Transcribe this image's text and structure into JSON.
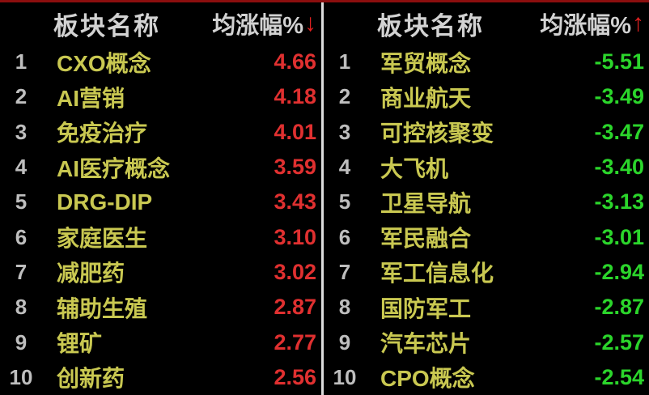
{
  "colors": {
    "background": "#000000",
    "top_border": "#8b0e0e",
    "divider": "#dcdcdc",
    "header_text": "#d2d2d2",
    "rank_text": "#bebebe",
    "sector_text": "#c9c851",
    "up_value": "#e03030",
    "down_value": "#2bd52b",
    "arrow": "#e02020"
  },
  "panels": [
    {
      "id": "gainers",
      "trend": "up",
      "header": {
        "name_label": "板块名称",
        "value_label": "均涨幅%",
        "sort_arrow": "↓"
      },
      "rows": [
        {
          "rank": "1",
          "name": "CXO概念",
          "value": "4.66"
        },
        {
          "rank": "2",
          "name": "AI营销",
          "value": "4.18"
        },
        {
          "rank": "3",
          "name": "免疫治疗",
          "value": "4.01"
        },
        {
          "rank": "4",
          "name": "AI医疗概念",
          "value": "3.59"
        },
        {
          "rank": "5",
          "name": "DRG-DIP",
          "value": "3.43"
        },
        {
          "rank": "6",
          "name": "家庭医生",
          "value": "3.10"
        },
        {
          "rank": "7",
          "name": "减肥药",
          "value": "3.02"
        },
        {
          "rank": "8",
          "name": "辅助生殖",
          "value": "2.87"
        },
        {
          "rank": "9",
          "name": "锂矿",
          "value": "2.77"
        },
        {
          "rank": "10",
          "name": "创新药",
          "value": "2.56"
        }
      ]
    },
    {
      "id": "losers",
      "trend": "down",
      "header": {
        "name_label": "板块名称",
        "value_label": "均涨幅%",
        "sort_arrow": "↑"
      },
      "rows": [
        {
          "rank": "1",
          "name": "军贸概念",
          "value": "-5.51"
        },
        {
          "rank": "2",
          "name": "商业航天",
          "value": "-3.49"
        },
        {
          "rank": "3",
          "name": "可控核聚变",
          "value": "-3.47"
        },
        {
          "rank": "4",
          "name": "大飞机",
          "value": "-3.40"
        },
        {
          "rank": "5",
          "name": "卫星导航",
          "value": "-3.13"
        },
        {
          "rank": "6",
          "name": "军民融合",
          "value": "-3.01"
        },
        {
          "rank": "7",
          "name": "军工信息化",
          "value": "-2.94"
        },
        {
          "rank": "8",
          "name": "国防军工",
          "value": "-2.87"
        },
        {
          "rank": "9",
          "name": "汽车芯片",
          "value": "-2.57"
        },
        {
          "rank": "10",
          "name": "CPO概念",
          "value": "-2.54"
        }
      ]
    }
  ]
}
